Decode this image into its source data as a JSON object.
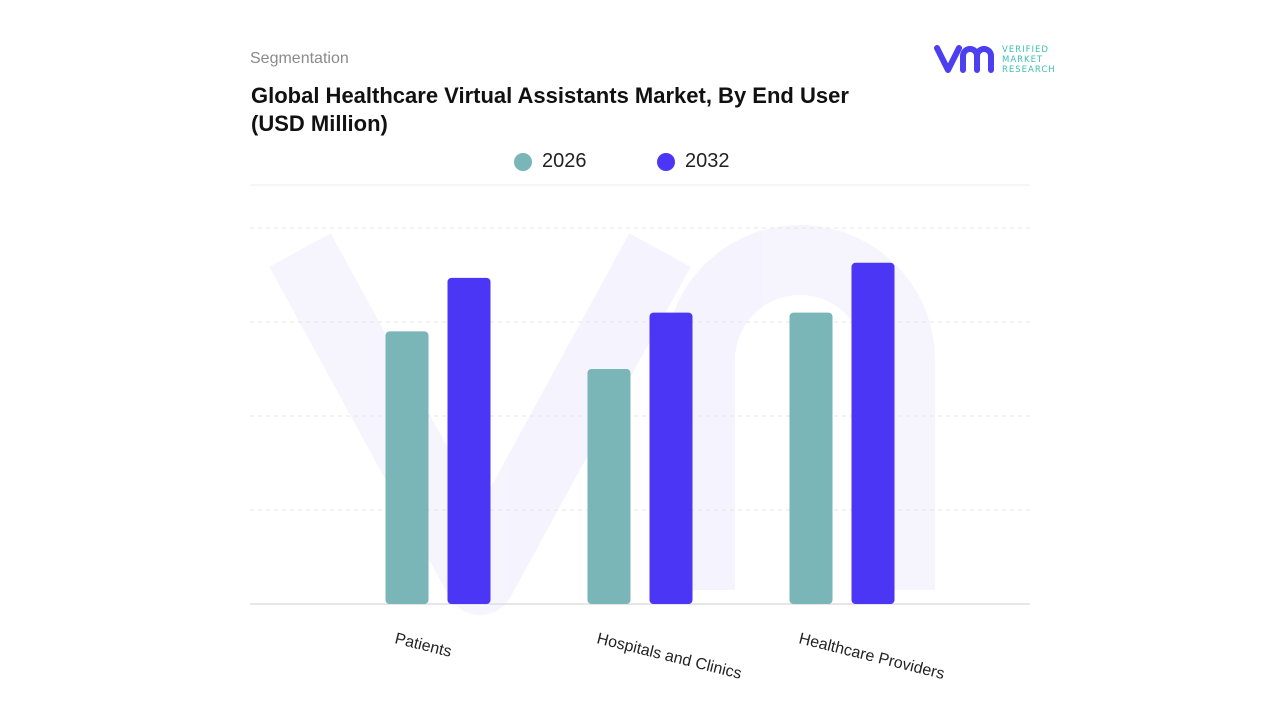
{
  "header": {
    "segment_label": "Segmentation",
    "title": "Global Healthcare Virtual Assistants Market, By End User (USD Million)"
  },
  "logo": {
    "text_lines": [
      "VERIFIED",
      "MARKET",
      "RESEARCH"
    ],
    "mark": "vmr",
    "color_mark": "#4b3ff0",
    "color_text": "#3bbfad"
  },
  "colors": {
    "2026": "#7ab5b8",
    "2032": "#4b36f5",
    "grid": "#e6e6e6"
  },
  "chart_data": {
    "type": "bar",
    "title": "Global Healthcare Virtual Assistants Market, By End User (USD Million)",
    "categories": [
      "Patients",
      "Hospitals and Clinics",
      "Healthcare Providers"
    ],
    "series": [
      {
        "name": "2026",
        "values": [
          2.9,
          2.5,
          3.1
        ]
      },
      {
        "name": "2032",
        "values": [
          3.47,
          3.1,
          3.63
        ]
      }
    ],
    "ylim": [
      0,
      4
    ],
    "grid": true,
    "legend": "top-center",
    "y_tick_labels_shown": false
  }
}
